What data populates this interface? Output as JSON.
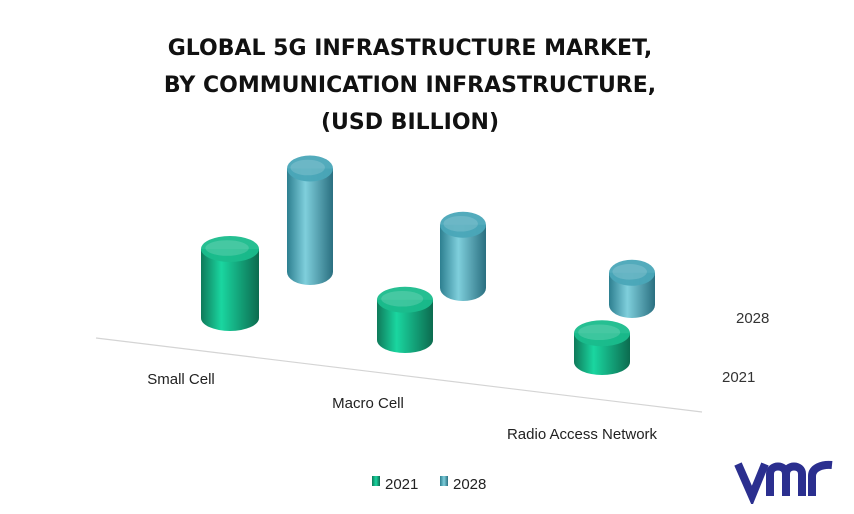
{
  "title_lines": [
    "GLOBAL 5G INFRASTRUCTURE MARKET,",
    "BY COMMUNICATION INFRASTRUCTURE,",
    "(USD BILLION)"
  ],
  "chart_data": {
    "type": "bar",
    "title": "GLOBAL 5G INFRASTRUCTURE MARKET, BY COMMUNICATION INFRASTRUCTURE, (USD BILLION)",
    "categories": [
      "Small Cell",
      "Macro Cell",
      "Radio Access Network"
    ],
    "series": [
      {
        "name": "2021",
        "values": [
          60,
          35,
          25
        ],
        "color": "#1abc8c"
      },
      {
        "name": "2028",
        "values": [
          90,
          55,
          28
        ],
        "color": "#4aa7b8"
      }
    ],
    "depth_labels": [
      "2028",
      "2021"
    ],
    "legend": [
      "2021",
      "2028"
    ],
    "legend_position": "bottom",
    "bar_shape": "cylinder-3d",
    "grid": false
  },
  "logo": {
    "name": "vmr-logo",
    "text": "vmr",
    "color": "#2b2f8f"
  }
}
